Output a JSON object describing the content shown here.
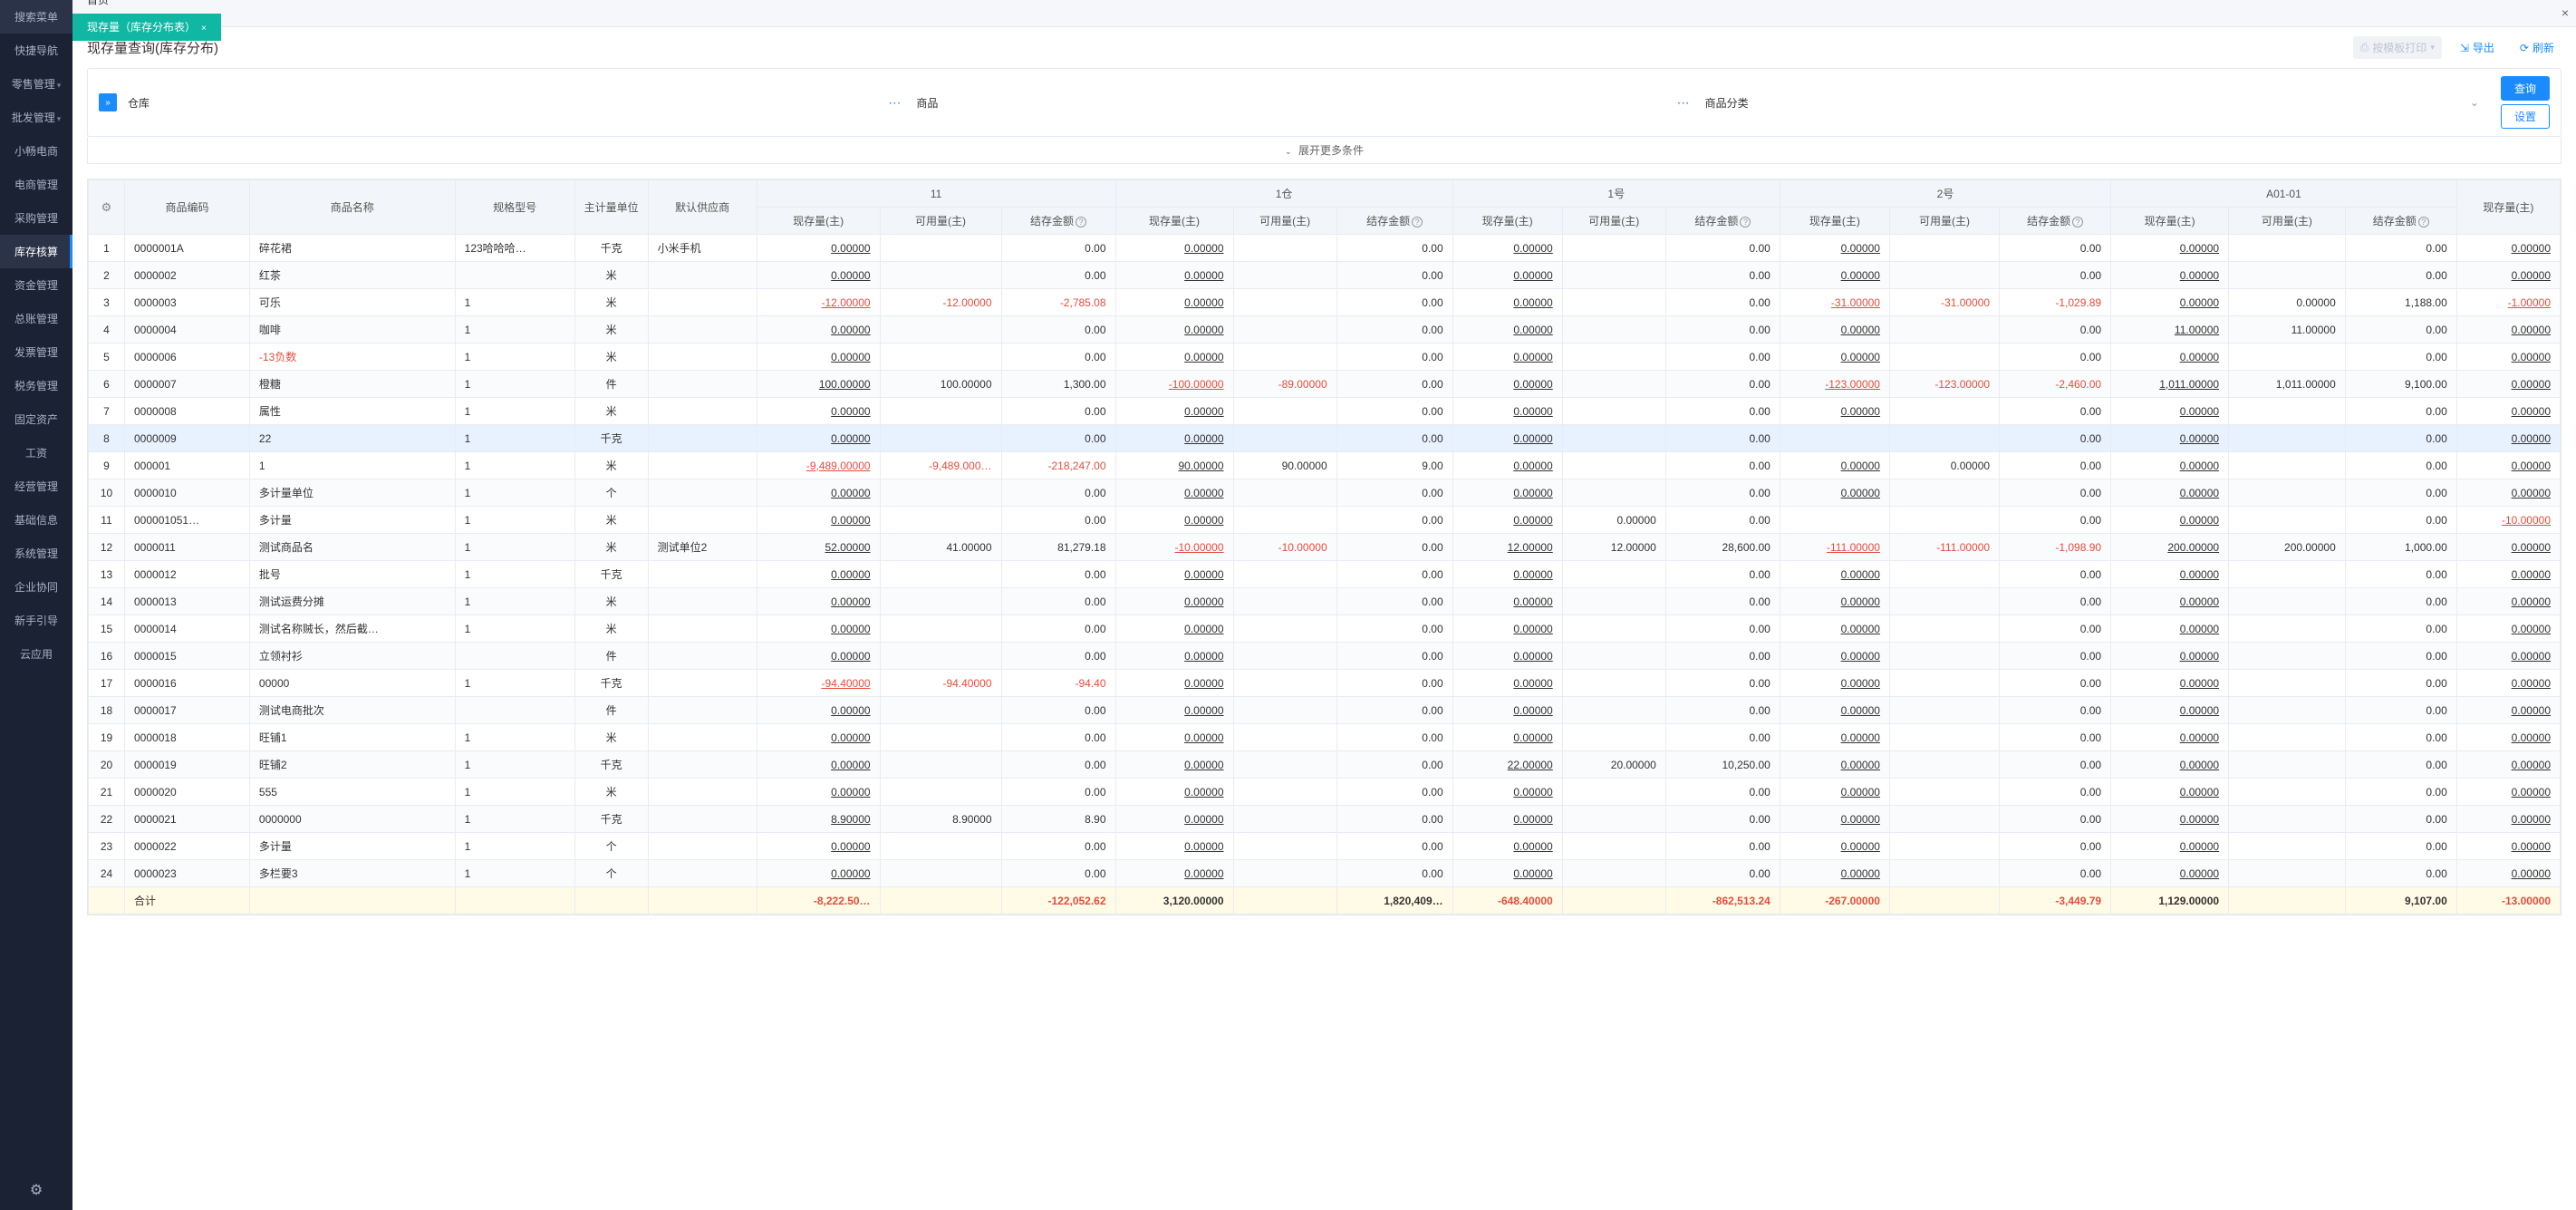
{
  "sidebar": {
    "items": [
      {
        "label": "搜索菜单",
        "hasArrow": false
      },
      {
        "label": "快捷导航",
        "hasArrow": false
      },
      {
        "label": "零售管理",
        "hasArrow": true
      },
      {
        "label": "批发管理",
        "hasArrow": true
      },
      {
        "label": "小畅电商",
        "hasArrow": false
      },
      {
        "label": "电商管理",
        "hasArrow": false
      },
      {
        "label": "采购管理",
        "hasArrow": false
      },
      {
        "label": "库存核算",
        "hasArrow": false,
        "active": true
      },
      {
        "label": "资金管理",
        "hasArrow": false
      },
      {
        "label": "总账管理",
        "hasArrow": false
      },
      {
        "label": "发票管理",
        "hasArrow": false
      },
      {
        "label": "税务管理",
        "hasArrow": false
      },
      {
        "label": "固定资产",
        "hasArrow": false
      },
      {
        "label": "工资",
        "hasArrow": false
      },
      {
        "label": "经营管理",
        "hasArrow": false
      },
      {
        "label": "基础信息",
        "hasArrow": false
      },
      {
        "label": "系统管理",
        "hasArrow": false
      },
      {
        "label": "企业协同",
        "hasArrow": false
      },
      {
        "label": "新手引导",
        "hasArrow": false
      },
      {
        "label": "云应用",
        "hasArrow": false
      }
    ]
  },
  "tabs": [
    {
      "label": "首页",
      "active": false
    },
    {
      "label": "现存量（库存分布表）",
      "active": true,
      "closable": true
    }
  ],
  "page": {
    "title": "现存量查询(库存分布)",
    "actions": {
      "print": "按模板打印",
      "export": "导出",
      "refresh": "刷新"
    }
  },
  "filters": {
    "warehouse": {
      "label": "仓库"
    },
    "product": {
      "label": "商品"
    },
    "category": {
      "label": "商品分类"
    },
    "queryBtn": "查询",
    "settingsBtn": "设置",
    "expandLabel": "展开更多条件"
  },
  "table": {
    "headerGroups": [
      "11",
      "1仓",
      "1号",
      "2号",
      "A01-01"
    ],
    "fixedHeaders": {
      "gear": "⚙",
      "code": "商品编码",
      "name": "商品名称",
      "spec": "规格型号",
      "unit": "主计量单位",
      "supplier": "默认供应商"
    },
    "groupSubHeaders": {
      "stock": "现存量(主)",
      "avail": "可用量(主)",
      "amount": "结存金额"
    },
    "lastExtra": "现存量(主)",
    "rows": [
      {
        "idx": 1,
        "code": "0000001A",
        "name": "碎花裙",
        "spec": "123哈哈哈…",
        "unit": "千克",
        "supplier": "小米手机",
        "groups": [
          [
            "0.00000",
            "",
            "0.00"
          ],
          [
            "0.00000",
            "",
            "0.00"
          ],
          [
            "0.00000",
            "",
            "0.00"
          ],
          [
            "0.00000",
            "",
            "0.00"
          ],
          [
            "0.00000",
            "",
            "0.00"
          ]
        ],
        "extra": "0.00000"
      },
      {
        "idx": 2,
        "code": "0000002",
        "name": "红茶",
        "spec": "",
        "unit": "米",
        "supplier": "",
        "groups": [
          [
            "0.00000",
            "",
            "0.00"
          ],
          [
            "0.00000",
            "",
            "0.00"
          ],
          [
            "0.00000",
            "",
            "0.00"
          ],
          [
            "0.00000",
            "",
            "0.00"
          ],
          [
            "0.00000",
            "",
            "0.00"
          ]
        ],
        "extra": "0.00000"
      },
      {
        "idx": 3,
        "code": "0000003",
        "name": "可乐",
        "spec": "1",
        "unit": "米",
        "supplier": "",
        "groups": [
          [
            "-12.00000",
            "-12.00000",
            "-2,785.08"
          ],
          [
            "0.00000",
            "",
            "0.00"
          ],
          [
            "0.00000",
            "",
            "0.00"
          ],
          [
            "-31.00000",
            "-31.00000",
            "-1,029.89"
          ],
          [
            "0.00000",
            "0.00000",
            "1,188.00"
          ]
        ],
        "extra": "-1.00000"
      },
      {
        "idx": 4,
        "code": "0000004",
        "name": "咖啡",
        "spec": "1",
        "unit": "米",
        "supplier": "",
        "groups": [
          [
            "0.00000",
            "",
            "0.00"
          ],
          [
            "0.00000",
            "",
            "0.00"
          ],
          [
            "0.00000",
            "",
            "0.00"
          ],
          [
            "0.00000",
            "",
            "0.00"
          ],
          [
            "11.00000",
            "11.00000",
            "0.00"
          ]
        ],
        "extra": "0.00000"
      },
      {
        "idx": 5,
        "code": "0000006",
        "name": "-13负数",
        "nameRed": true,
        "spec": "1",
        "unit": "米",
        "supplier": "",
        "groups": [
          [
            "0.00000",
            "",
            "0.00"
          ],
          [
            "0.00000",
            "",
            "0.00"
          ],
          [
            "0.00000",
            "",
            "0.00"
          ],
          [
            "0.00000",
            "",
            "0.00"
          ],
          [
            "0.00000",
            "",
            "0.00"
          ]
        ],
        "extra": "0.00000"
      },
      {
        "idx": 6,
        "code": "0000007",
        "name": "橙糖",
        "spec": "1",
        "unit": "件",
        "supplier": "",
        "groups": [
          [
            "100.00000",
            "100.00000",
            "1,300.00"
          ],
          [
            "-100.00000",
            "-89.00000",
            "0.00"
          ],
          [
            "0.00000",
            "",
            "0.00"
          ],
          [
            "-123.00000",
            "-123.00000",
            "-2,460.00"
          ],
          [
            "1,011.00000",
            "1,011.00000",
            "9,100.00"
          ]
        ],
        "extra": "0.00000"
      },
      {
        "idx": 7,
        "code": "0000008",
        "name": "属性",
        "spec": "1",
        "unit": "米",
        "supplier": "",
        "groups": [
          [
            "0.00000",
            "",
            "0.00"
          ],
          [
            "0.00000",
            "",
            "0.00"
          ],
          [
            "0.00000",
            "",
            "0.00"
          ],
          [
            "0.00000",
            "",
            "0.00"
          ],
          [
            "0.00000",
            "",
            "0.00"
          ]
        ],
        "extra": "0.00000"
      },
      {
        "idx": 8,
        "code": "0000009",
        "name": "22",
        "spec": "1",
        "unit": "千克",
        "supplier": "",
        "hl": true,
        "groups": [
          [
            "0.00000",
            "",
            "0.00"
          ],
          [
            "0.00000",
            "",
            "0.00"
          ],
          [
            "0.00000",
            "",
            "0.00"
          ],
          [
            "",
            "",
            "0.00"
          ],
          [
            "0.00000",
            "",
            "0.00"
          ]
        ],
        "extra": "0.00000"
      },
      {
        "idx": 9,
        "code": "000001",
        "name": "1",
        "spec": "1",
        "unit": "米",
        "supplier": "",
        "groups": [
          [
            "-9,489.00000",
            "-9,489.000…",
            "-218,247.00"
          ],
          [
            "90.00000",
            "90.00000",
            "9.00"
          ],
          [
            "0.00000",
            "",
            "0.00"
          ],
          [
            "0.00000",
            "0.00000",
            "0.00"
          ],
          [
            "0.00000",
            "",
            "0.00"
          ]
        ],
        "extra": "0.00000"
      },
      {
        "idx": 10,
        "code": "0000010",
        "name": "多计量单位",
        "spec": "1",
        "unit": "个",
        "supplier": "",
        "groups": [
          [
            "0.00000",
            "",
            "0.00"
          ],
          [
            "0.00000",
            "",
            "0.00"
          ],
          [
            "0.00000",
            "",
            "0.00"
          ],
          [
            "0.00000",
            "",
            "0.00"
          ],
          [
            "0.00000",
            "",
            "0.00"
          ]
        ],
        "extra": "0.00000"
      },
      {
        "idx": 11,
        "code": "000001051…",
        "name": "多计量",
        "spec": "1",
        "unit": "米",
        "supplier": "",
        "groups": [
          [
            "0.00000",
            "",
            "0.00"
          ],
          [
            "0.00000",
            "",
            "0.00"
          ],
          [
            "0.00000",
            "0.00000",
            "0.00"
          ],
          [
            "",
            "",
            "0.00"
          ],
          [
            "0.00000",
            "",
            "0.00"
          ]
        ],
        "extra": "-10.00000"
      },
      {
        "idx": 12,
        "code": "0000011",
        "name": "测试商品名",
        "spec": "1",
        "unit": "米",
        "supplier": "测试单位2",
        "groups": [
          [
            "52.00000",
            "41.00000",
            "81,279.18"
          ],
          [
            "-10.00000",
            "-10.00000",
            "0.00"
          ],
          [
            "12.00000",
            "12.00000",
            "28,600.00"
          ],
          [
            "-111.00000",
            "-111.00000",
            "-1,098.90"
          ],
          [
            "200.00000",
            "200.00000",
            "1,000.00"
          ]
        ],
        "extra": "0.00000"
      },
      {
        "idx": 13,
        "code": "0000012",
        "name": "批号",
        "spec": "1",
        "unit": "千克",
        "supplier": "",
        "groups": [
          [
            "0.00000",
            "",
            "0.00"
          ],
          [
            "0.00000",
            "",
            "0.00"
          ],
          [
            "0.00000",
            "",
            "0.00"
          ],
          [
            "0.00000",
            "",
            "0.00"
          ],
          [
            "0.00000",
            "",
            "0.00"
          ]
        ],
        "extra": "0.00000"
      },
      {
        "idx": 14,
        "code": "0000013",
        "name": "测试运费分摊",
        "spec": "1",
        "unit": "米",
        "supplier": "",
        "groups": [
          [
            "0.00000",
            "",
            "0.00"
          ],
          [
            "0.00000",
            "",
            "0.00"
          ],
          [
            "0.00000",
            "",
            "0.00"
          ],
          [
            "0.00000",
            "",
            "0.00"
          ],
          [
            "0.00000",
            "",
            "0.00"
          ]
        ],
        "extra": "0.00000"
      },
      {
        "idx": 15,
        "code": "0000014",
        "name": "测试名称贼长，然后截…",
        "spec": "1",
        "unit": "米",
        "supplier": "",
        "groups": [
          [
            "0.00000",
            "",
            "0.00"
          ],
          [
            "0.00000",
            "",
            "0.00"
          ],
          [
            "0.00000",
            "",
            "0.00"
          ],
          [
            "0.00000",
            "",
            "0.00"
          ],
          [
            "0.00000",
            "",
            "0.00"
          ]
        ],
        "extra": "0.00000"
      },
      {
        "idx": 16,
        "code": "0000015",
        "name": "立领衬衫",
        "spec": "",
        "unit": "件",
        "supplier": "",
        "groups": [
          [
            "0.00000",
            "",
            "0.00"
          ],
          [
            "0.00000",
            "",
            "0.00"
          ],
          [
            "0.00000",
            "",
            "0.00"
          ],
          [
            "0.00000",
            "",
            "0.00"
          ],
          [
            "0.00000",
            "",
            "0.00"
          ]
        ],
        "extra": "0.00000"
      },
      {
        "idx": 17,
        "code": "0000016",
        "name": "00000",
        "spec": "1",
        "unit": "千克",
        "supplier": "",
        "groups": [
          [
            "-94.40000",
            "-94.40000",
            "-94.40"
          ],
          [
            "0.00000",
            "",
            "0.00"
          ],
          [
            "0.00000",
            "",
            "0.00"
          ],
          [
            "0.00000",
            "",
            "0.00"
          ],
          [
            "0.00000",
            "",
            "0.00"
          ]
        ],
        "extra": "0.00000"
      },
      {
        "idx": 18,
        "code": "0000017",
        "name": "测试电商批次",
        "spec": "",
        "unit": "件",
        "supplier": "",
        "groups": [
          [
            "0.00000",
            "",
            "0.00"
          ],
          [
            "0.00000",
            "",
            "0.00"
          ],
          [
            "0.00000",
            "",
            "0.00"
          ],
          [
            "0.00000",
            "",
            "0.00"
          ],
          [
            "0.00000",
            "",
            "0.00"
          ]
        ],
        "extra": "0.00000"
      },
      {
        "idx": 19,
        "code": "0000018",
        "name": "旺铺1",
        "spec": "1",
        "unit": "米",
        "supplier": "",
        "groups": [
          [
            "0.00000",
            "",
            "0.00"
          ],
          [
            "0.00000",
            "",
            "0.00"
          ],
          [
            "0.00000",
            "",
            "0.00"
          ],
          [
            "0.00000",
            "",
            "0.00"
          ],
          [
            "0.00000",
            "",
            "0.00"
          ]
        ],
        "extra": "0.00000"
      },
      {
        "idx": 20,
        "code": "0000019",
        "name": "旺铺2",
        "spec": "1",
        "unit": "千克",
        "supplier": "",
        "groups": [
          [
            "0.00000",
            "",
            "0.00"
          ],
          [
            "0.00000",
            "",
            "0.00"
          ],
          [
            "22.00000",
            "20.00000",
            "10,250.00"
          ],
          [
            "0.00000",
            "",
            "0.00"
          ],
          [
            "0.00000",
            "",
            "0.00"
          ]
        ],
        "extra": "0.00000"
      },
      {
        "idx": 21,
        "code": "0000020",
        "name": "555",
        "spec": "1",
        "unit": "米",
        "supplier": "",
        "groups": [
          [
            "0.00000",
            "",
            "0.00"
          ],
          [
            "0.00000",
            "",
            "0.00"
          ],
          [
            "0.00000",
            "",
            "0.00"
          ],
          [
            "0.00000",
            "",
            "0.00"
          ],
          [
            "0.00000",
            "",
            "0.00"
          ]
        ],
        "extra": "0.00000"
      },
      {
        "idx": 22,
        "code": "0000021",
        "name": "0000000",
        "spec": "1",
        "unit": "千克",
        "supplier": "",
        "groups": [
          [
            "8.90000",
            "8.90000",
            "8.90"
          ],
          [
            "0.00000",
            "",
            "0.00"
          ],
          [
            "0.00000",
            "",
            "0.00"
          ],
          [
            "0.00000",
            "",
            "0.00"
          ],
          [
            "0.00000",
            "",
            "0.00"
          ]
        ],
        "extra": "0.00000"
      },
      {
        "idx": 23,
        "code": "0000022",
        "name": "多计量",
        "spec": "1",
        "unit": "个",
        "supplier": "",
        "groups": [
          [
            "0.00000",
            "",
            "0.00"
          ],
          [
            "0.00000",
            "",
            "0.00"
          ],
          [
            "0.00000",
            "",
            "0.00"
          ],
          [
            "0.00000",
            "",
            "0.00"
          ],
          [
            "0.00000",
            "",
            "0.00"
          ]
        ],
        "extra": "0.00000"
      },
      {
        "idx": 24,
        "code": "0000023",
        "name": "多栏要3",
        "spec": "1",
        "unit": "个",
        "supplier": "",
        "groups": [
          [
            "0.00000",
            "",
            "0.00"
          ],
          [
            "0.00000",
            "",
            "0.00"
          ],
          [
            "0.00000",
            "",
            "0.00"
          ],
          [
            "0.00000",
            "",
            "0.00"
          ],
          [
            "0.00000",
            "",
            "0.00"
          ]
        ],
        "extra": "0.00000"
      }
    ],
    "totalRow": {
      "label": "合计",
      "groups": [
        [
          "-8,222.50…",
          "",
          "-122,052.62"
        ],
        [
          "3,120.00000",
          "",
          "1,820,409…"
        ],
        [
          "-648.40000",
          "",
          "-862,513.24"
        ],
        [
          "-267.00000",
          "",
          "-3,449.79"
        ],
        [
          "1,129.00000",
          "",
          "9,107.00"
        ]
      ],
      "extra": "-13.00000"
    }
  }
}
